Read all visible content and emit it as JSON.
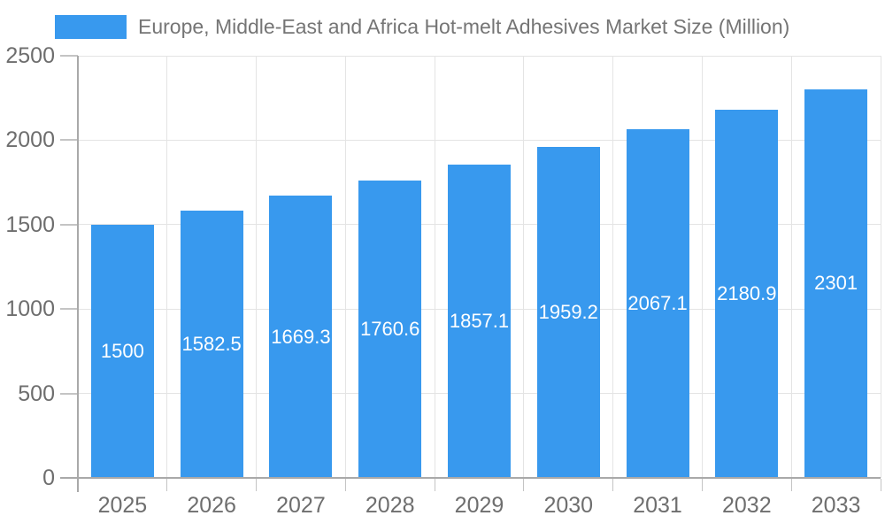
{
  "chart_data": {
    "type": "bar",
    "title": "Europe, Middle-East and Africa Hot-melt Adhesives Market Size (Million)",
    "categories": [
      "2025",
      "2026",
      "2027",
      "2028",
      "2029",
      "2030",
      "2031",
      "2032",
      "2033"
    ],
    "values": [
      1500,
      1582.5,
      1669.3,
      1760.6,
      1857.1,
      1959.2,
      2067.1,
      2180.9,
      2301
    ],
    "value_labels": [
      "1500",
      "1582.5",
      "1669.3",
      "1760.6",
      "1857.1",
      "1959.2",
      "2067.1",
      "2180.9",
      "2301"
    ],
    "xlabel": "",
    "ylabel": "",
    "ylim": [
      0,
      2500
    ],
    "yticks": [
      0,
      500,
      1000,
      1500,
      2000,
      2500
    ],
    "grid": true,
    "legend_position": "top",
    "bar_color": "#3899EE",
    "value_label_color": "#FFFFFF"
  },
  "legend": {
    "label": "Europe, Middle-East and Africa Hot-melt Adhesives Market Size (Million)",
    "swatch_color": "#3899EE"
  },
  "colors": {
    "background": "#FFFFFF",
    "axis_line": "#A9A9A9",
    "tick_mark": "#C4C4C4",
    "gridline": "#E4E4E4",
    "axis_text": "#6E6E6E",
    "title_text": "#757575"
  }
}
